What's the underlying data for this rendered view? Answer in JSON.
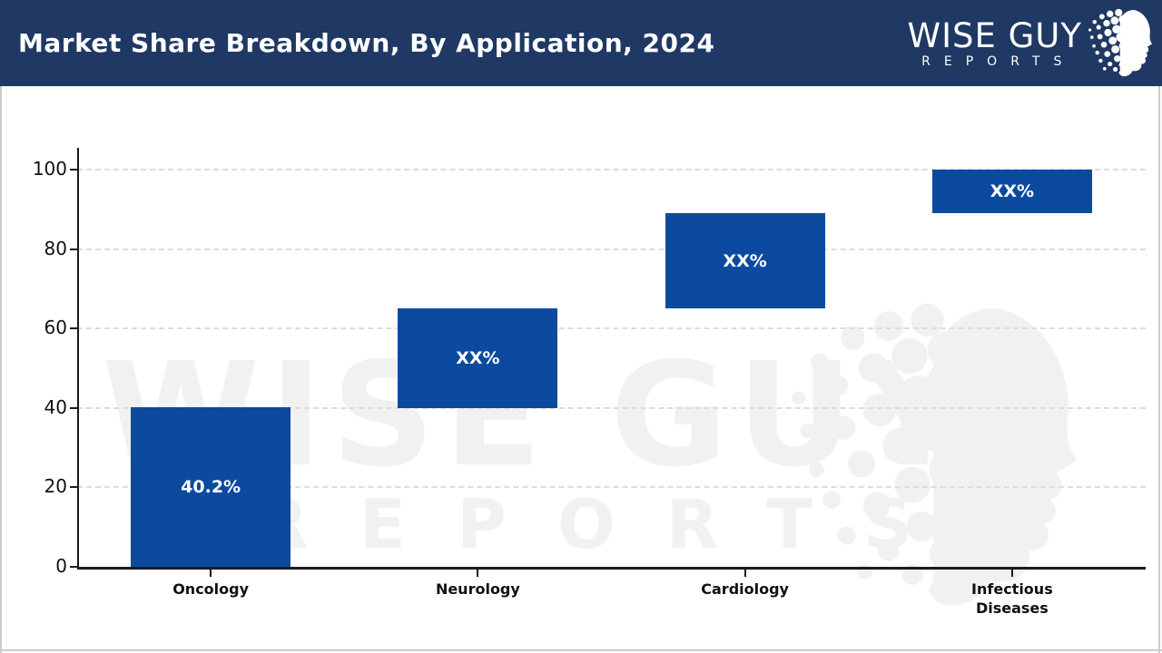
{
  "header": {
    "title": "Market Share Breakdown, By Application, 2024",
    "bg_color": "#1f3864",
    "brand": {
      "line1": "WISE GUY",
      "line2": "REPORTS"
    }
  },
  "watermark": {
    "line1": "WISE GUY",
    "line2": "REPORTS"
  },
  "chart_data": {
    "type": "bar",
    "variant": "waterfall",
    "title": "Market Share Breakdown, By Application, 2024",
    "categories": [
      "Oncology",
      "Neurology",
      "Cardiology",
      "Infectious Diseases"
    ],
    "bars": [
      {
        "category": "Oncology",
        "start": 0,
        "end": 40.2,
        "label": "40.2%"
      },
      {
        "category": "Neurology",
        "start": 40,
        "end": 65,
        "label": "XX%"
      },
      {
        "category": "Cardiology",
        "start": 65,
        "end": 89,
        "label": "XX%"
      },
      {
        "category": "Infectious Diseases",
        "start": 89,
        "end": 100,
        "label": "XX%"
      }
    ],
    "ylim": [
      0,
      100
    ],
    "yticks": [
      0,
      20,
      40,
      60,
      80,
      100
    ],
    "grid": {
      "horizontal": true,
      "style": "dashed",
      "color": "#dcdcdc"
    },
    "bar_color": "#0b4a9e",
    "bar_label_color": "#ffffff",
    "axis_color": "#1a1a1a",
    "legend": null
  }
}
